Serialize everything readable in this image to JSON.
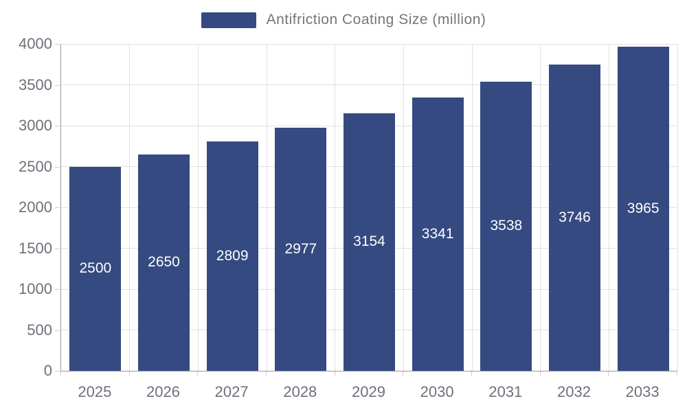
{
  "legend": {
    "items": [
      {
        "label": "Antifriction Coating Size (million)",
        "color": "#354a81"
      }
    ]
  },
  "chart_data": {
    "type": "bar",
    "title": "Antifriction Coating Size (million)",
    "series_name": "Antifriction Coating Size (million)",
    "categories": [
      "2025",
      "2026",
      "2027",
      "2028",
      "2029",
      "2030",
      "2031",
      "2032",
      "2033"
    ],
    "values": [
      2500,
      2650,
      2809,
      2977,
      3154,
      3341,
      3538,
      3746,
      3965
    ],
    "xlabel": "",
    "ylabel": "",
    "ylim": [
      0,
      4000
    ],
    "ytick_step": 500,
    "ytick_labels": [
      "0",
      "500",
      "1000",
      "1500",
      "2000",
      "2500",
      "3000",
      "3500",
      "4000"
    ],
    "grid": true,
    "legend_position": "top-center",
    "bar_width_ratio": 0.75,
    "value_labels_inside": true,
    "colors": {
      "bar": "#354a81",
      "value_label": "#ffffff",
      "axis_label": "#6e7079",
      "legend_text": "#72757a",
      "grid": "#e0e0e0",
      "axis_line": "#999999",
      "tick": "#cccccc",
      "background": "#ffffff"
    }
  }
}
